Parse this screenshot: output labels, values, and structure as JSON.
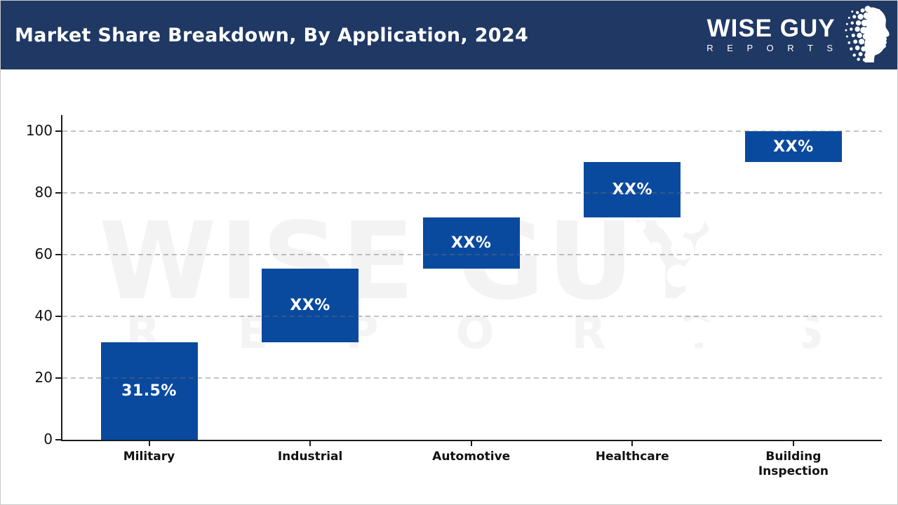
{
  "header": {
    "title": "Market Share Breakdown, By Application, 2024",
    "logo": {
      "line1": "WISE GUY",
      "line2": "R E P O R T S"
    }
  },
  "watermark": {
    "line1": "WISE GUY",
    "line2": "R E P O R T S"
  },
  "chart_data": {
    "type": "bar",
    "subtype": "waterfall",
    "title": "Market Share Breakdown, By Application, 2024",
    "categories": [
      "Military",
      "Industrial",
      "Automotive",
      "Healthcare",
      "Building\nInspection"
    ],
    "series": [
      {
        "name": "Market Share",
        "segments": [
          {
            "category": "Military",
            "start": 0,
            "end": 31.5,
            "label": "31.5%"
          },
          {
            "category": "Industrial",
            "start": 31.5,
            "end": 55.5,
            "label": "XX%"
          },
          {
            "category": "Automotive",
            "start": 55.5,
            "end": 72,
            "label": "XX%"
          },
          {
            "category": "Healthcare",
            "start": 72,
            "end": 90,
            "label": "XX%"
          },
          {
            "category": "Building Inspection",
            "start": 90,
            "end": 100,
            "label": "XX%"
          }
        ]
      }
    ],
    "ylim": [
      0,
      100
    ],
    "yticks": [
      0,
      20,
      40,
      60,
      80,
      100
    ],
    "xlabel": "",
    "ylabel": "",
    "grid": "horizontal-dashed",
    "legend": "none",
    "bar_color": "#0a4a9e",
    "bar_label_color": "#ffffff"
  },
  "colors": {
    "header_bg": "#1f3864",
    "bar": "#0a4a9e",
    "axis": "#1c1c1c",
    "watermark": "#f3f3f3"
  }
}
